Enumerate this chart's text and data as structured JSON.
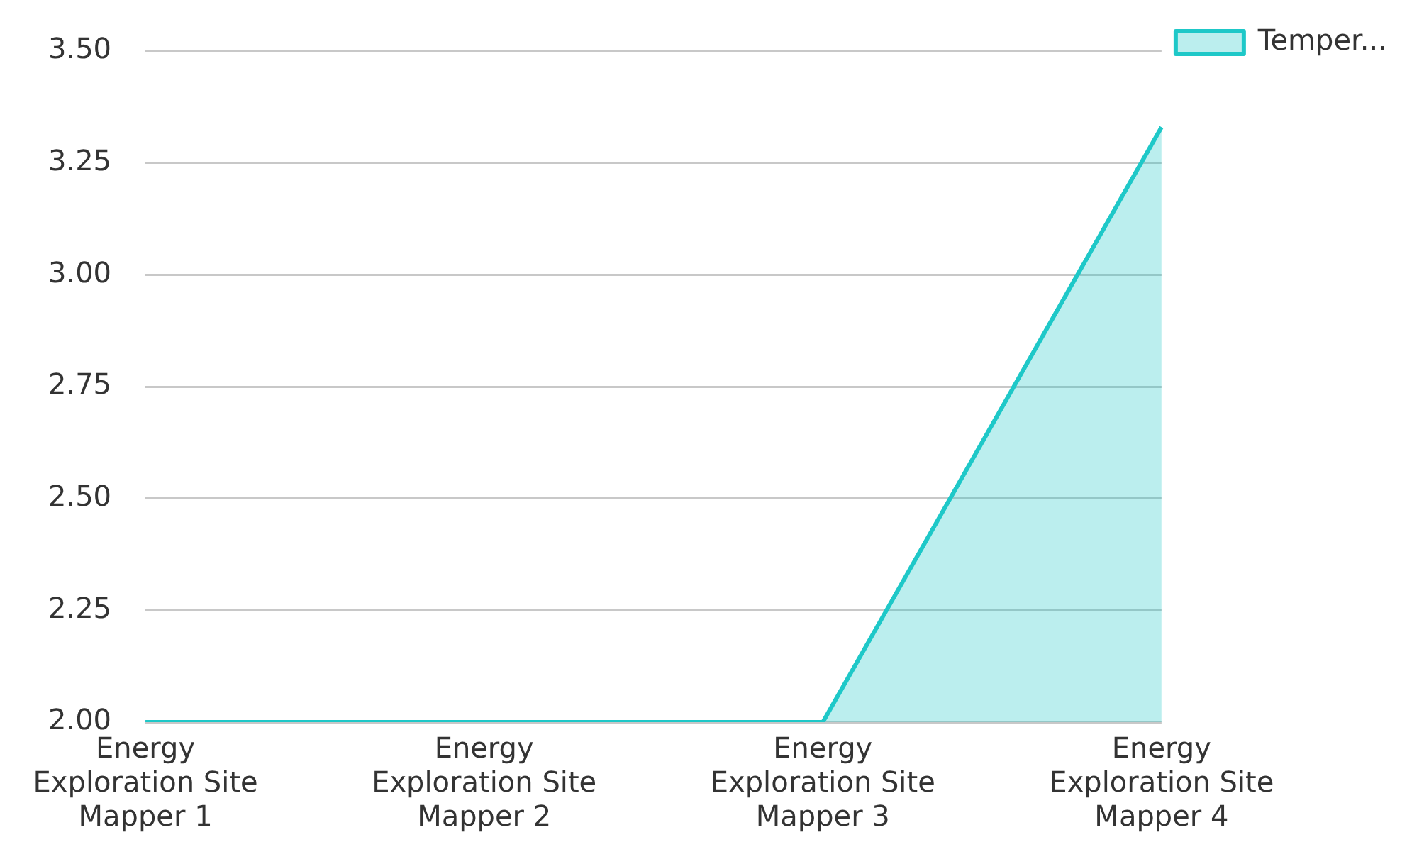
{
  "chart_data": {
    "type": "area",
    "categories": [
      "Energy Exploration Site Mapper 1",
      "Energy Exploration Site Mapper 2",
      "Energy Exploration Site Mapper 3",
      "Energy Exploration Site Mapper 4"
    ],
    "series": [
      {
        "name": "Temper...",
        "color": "#1ec8c8",
        "values": [
          2,
          2,
          2,
          3.33
        ]
      }
    ],
    "ylim": [
      2,
      3.5
    ],
    "yticks": [
      {
        "value": 2,
        "label": "2.00"
      },
      2.25,
      {
        "value": 2.5,
        "label": "2.50"
      },
      2.75,
      {
        "value": 3,
        "label": "3.00"
      },
      3.25,
      {
        "value": 3.5,
        "label": "3.50"
      }
    ],
    "grid": "y",
    "legend": "top right"
  }
}
